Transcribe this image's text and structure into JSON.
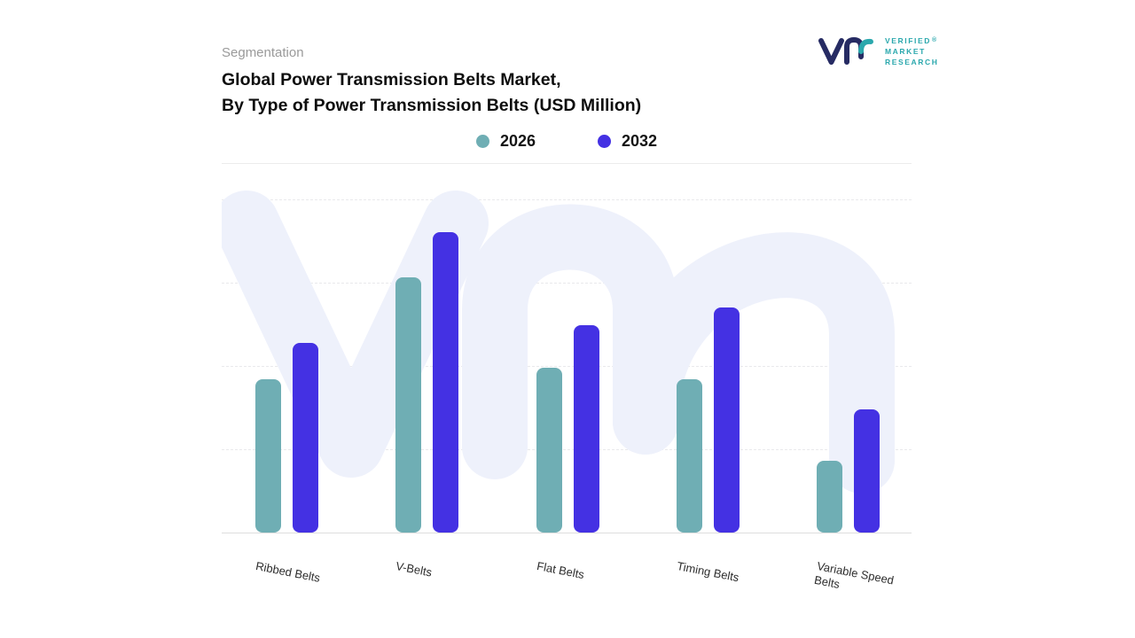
{
  "header": {
    "eyebrow": "Segmentation",
    "title_line1": "Global Power Transmission Belts Market,",
    "title_line2": "By Type of Power Transmission Belts (USD Million)"
  },
  "logo": {
    "lines": [
      "VERIFIED",
      "MARKET",
      "RESEARCH"
    ],
    "registered": "®",
    "monogram_navy": "#262b63",
    "monogram_teal": "#2aa8ad"
  },
  "legend": [
    {
      "label": "2026",
      "color": "#6faeb4"
    },
    {
      "label": "2032",
      "color": "#4431e3"
    }
  ],
  "colors": {
    "bar_2026": "#6faeb4",
    "bar_2032": "#4431e3",
    "watermark": "#eef1fb",
    "gridline": "#e9e9ec"
  },
  "chart_data": {
    "type": "bar",
    "title": "Global Power Transmission Belts Market, By Type of Power Transmission Belts (USD Million)",
    "categories": [
      "Ribbed Belts",
      "V-Belts",
      "Flat Belts",
      "Timing Belts",
      "Variable Speed Belts"
    ],
    "series": [
      {
        "name": "2026",
        "color": "#6faeb4",
        "values": [
          51,
          85,
          55,
          51,
          24
        ]
      },
      {
        "name": "2032",
        "color": "#4431e3",
        "values": [
          63,
          100,
          69,
          75,
          41
        ]
      }
    ],
    "xlabel": "",
    "ylabel": "",
    "ylim": [
      0,
      100
    ],
    "value_scale": "relative height, % of tallest bar (no numeric axis labels shown in figure)",
    "grid": "horizontal-dashed",
    "legend_position": "top-center"
  }
}
